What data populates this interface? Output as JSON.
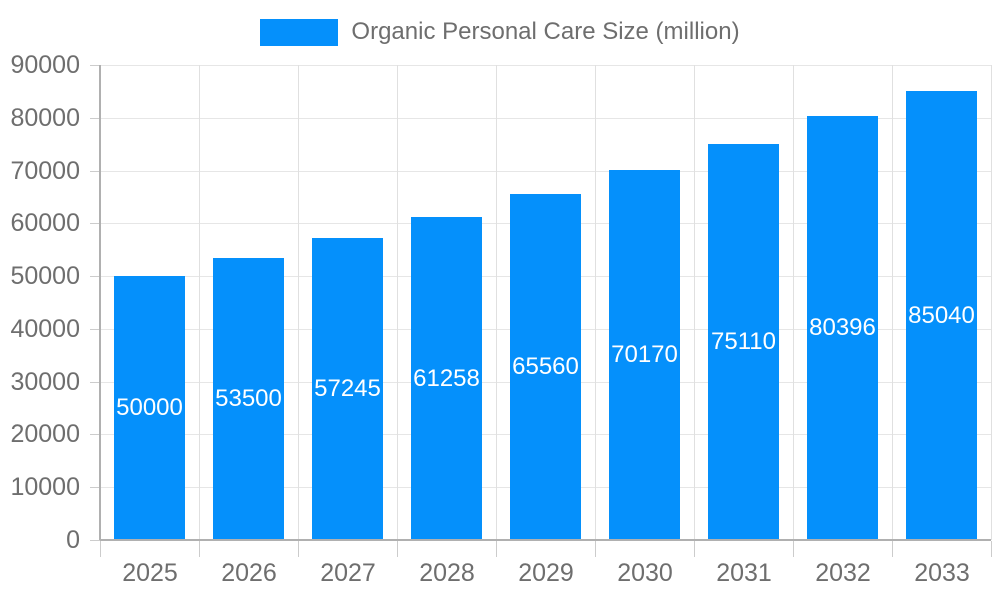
{
  "chart_data": {
    "type": "bar",
    "title": "Organic Personal Care Size (million)",
    "categories": [
      "2025",
      "2026",
      "2027",
      "2028",
      "2029",
      "2030",
      "2031",
      "2032",
      "2033"
    ],
    "values": [
      50000,
      53500,
      57245,
      61258,
      65560,
      70170,
      75110,
      80396,
      85040
    ],
    "bar_value_labels": [
      "50000",
      "53500",
      "57245",
      "61258",
      "65560",
      "70170",
      "75110",
      "80396",
      "85040"
    ],
    "xlabel": "",
    "ylabel": "",
    "ylim": [
      0,
      90000
    ],
    "ytick_step": 10000,
    "ytick_labels": [
      "0",
      "10000",
      "20000",
      "30000",
      "40000",
      "50000",
      "60000",
      "70000",
      "80000",
      "90000"
    ],
    "legend_position": "top",
    "grid": "on"
  },
  "colors": {
    "bar": "#0590fb",
    "bar_label": "#ffffff",
    "axis_text": "#6e6e6e",
    "legend_text": "#6e6e6e",
    "grid_h": "#e6e6e6",
    "grid_v": "#e0e0e0",
    "axis_line": "#b0b0b0",
    "tick": "#cccccc",
    "background": "#ffffff"
  }
}
